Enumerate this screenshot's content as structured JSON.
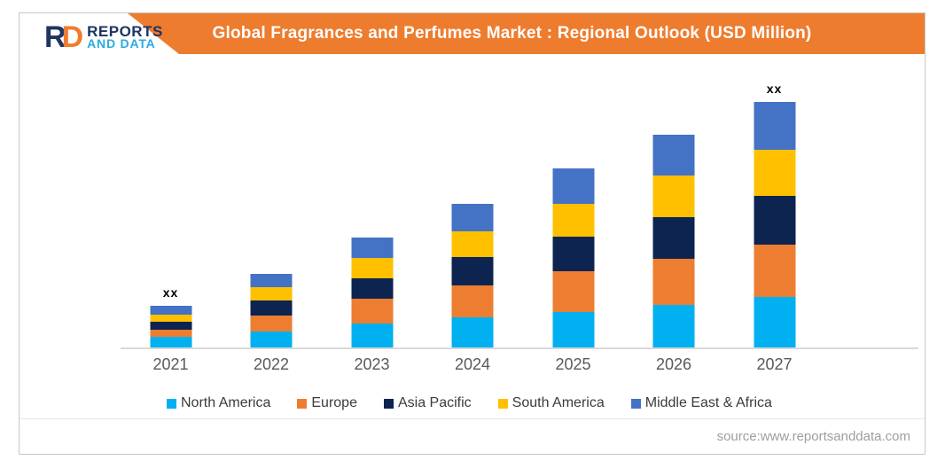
{
  "header": {
    "banner_title": "Global Fragrances and Perfumes Market : Regional Outlook (USD Million)",
    "banner_color": "#ee7c2e",
    "logo": {
      "icon_r": "R",
      "icon_d": "D",
      "line1": "REPORTS",
      "line2": "AND DATA",
      "colors": {
        "r": "#1e3461",
        "d": "#ee7c2e",
        "line1": "#1e3461",
        "line2": "#29abe2"
      }
    }
  },
  "chart_data": {
    "type": "bar",
    "stacked": true,
    "title": "Global Fragrances and Perfumes Market : Regional Outlook (USD Million)",
    "xlabel": "",
    "ylabel": "",
    "y_axis_shown": false,
    "grid": false,
    "legend_position": "bottom",
    "categories": [
      "2021",
      "2022",
      "2023",
      "2024",
      "2025",
      "2026",
      "2027"
    ],
    "series": [
      {
        "name": "North America",
        "color": "#00b0f0",
        "values": [
          12,
          18,
          27,
          34,
          40,
          48,
          57
        ]
      },
      {
        "name": "Europe",
        "color": "#ed7d31",
        "values": [
          8,
          18,
          28,
          36,
          46,
          52,
          59
        ]
      },
      {
        "name": "Asia Pacific",
        "color": "#0d2451",
        "values": [
          9,
          17,
          23,
          32,
          39,
          47,
          55
        ]
      },
      {
        "name": "South America",
        "color": "#ffc000",
        "values": [
          8,
          15,
          23,
          29,
          37,
          47,
          52
        ]
      },
      {
        "name": "Middle East & Africa",
        "color": "#4472c4",
        "values": [
          10,
          15,
          23,
          31,
          40,
          46,
          54
        ]
      }
    ],
    "bar_value_labels": [
      "xx",
      "",
      "",
      "",
      "",
      "",
      "xx"
    ],
    "values_unit": "relative heights (px); actual values masked as 'xx' in source image",
    "axis_color": "#d9d9d9"
  },
  "footer": {
    "source": "source:www.reportsanddata.com"
  }
}
